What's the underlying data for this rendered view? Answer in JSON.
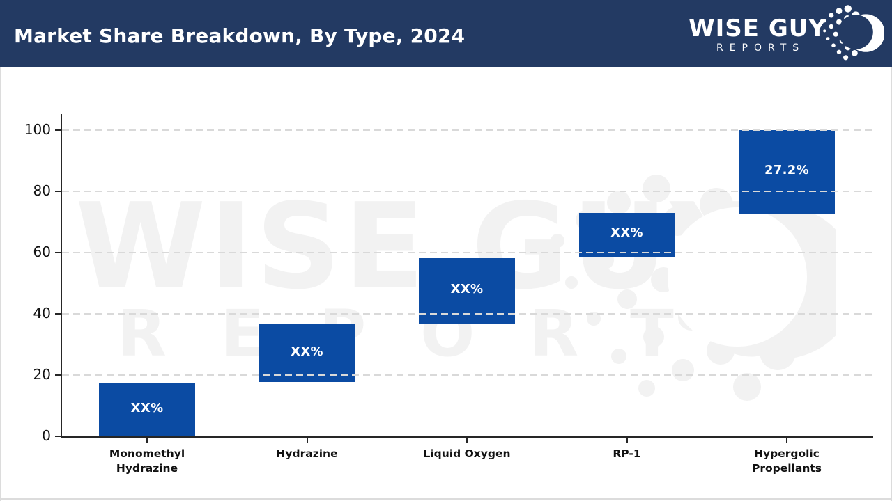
{
  "header": {
    "title": "Market Share Breakdown, By Type, 2024",
    "bg_color": "#233a63",
    "logo": {
      "line1": "WISE GUY",
      "line2": "REPORTS"
    }
  },
  "watermark": {
    "line1": "WISE GUY",
    "line2": "REPORTS"
  },
  "chart_data": {
    "type": "bar",
    "subtype": "waterfall-floating-bars",
    "title": "Market Share Breakdown, By Type, 2024",
    "categories": [
      "Monomethyl Hydrazine",
      "Hydrazine",
      "Liquid Oxygen",
      "RP-1",
      "Hypergolic Propellants"
    ],
    "category_lines": [
      [
        "Monomethyl",
        "Hydrazine"
      ],
      [
        "Hydrazine"
      ],
      [
        "Liquid Oxygen"
      ],
      [
        "RP-1"
      ],
      [
        "Hypergolic",
        "Propellants"
      ]
    ],
    "segments": [
      {
        "category": "Monomethyl Hydrazine",
        "start": 0,
        "end": 17.5,
        "label": "XX%"
      },
      {
        "category": "Hydrazine",
        "start": 17.7,
        "end": 36.6,
        "label": "XX%"
      },
      {
        "category": "Liquid Oxygen",
        "start": 36.8,
        "end": 58.2,
        "label": "XX%"
      },
      {
        "category": "RP-1",
        "start": 58.6,
        "end": 73.0,
        "label": "XX%"
      },
      {
        "category": "Hypergolic Propellants",
        "start": 72.8,
        "end": 100,
        "label": "27.2%"
      }
    ],
    "xlabel": "",
    "ylabel": "",
    "yticks": [
      0,
      20,
      40,
      60,
      80,
      100
    ],
    "ylim": [
      0,
      105
    ],
    "bar_color": "#0b4ba3",
    "grid": "horizontal-dashed-over-bars",
    "gridline_color": "#d9d9d9",
    "legend": "none"
  }
}
